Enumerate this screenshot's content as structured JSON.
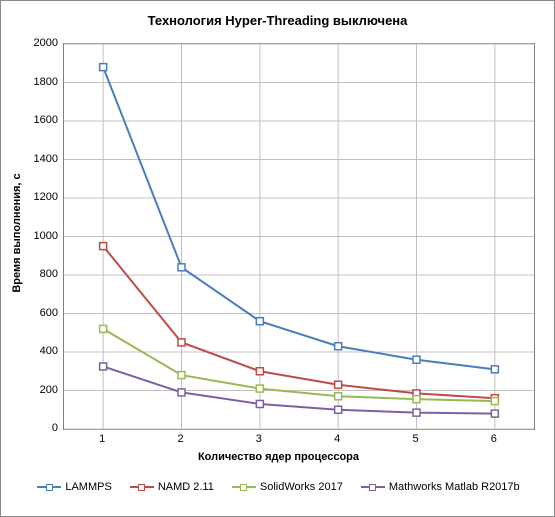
{
  "chart": {
    "title": "Технология Hyper-Threading выключена",
    "title_fontsize": 13,
    "title_weight": "bold",
    "xlabel": "Количество ядер процессора",
    "ylabel": "Время выполнения, с",
    "label_fontsize": 11,
    "label_weight": "bold",
    "background_color": "#ffffff",
    "border_color": "#808080",
    "grid_color": "#c0c0c0",
    "tick_fontsize": 11,
    "ylim": [
      0,
      2000
    ],
    "ytick_step": 200,
    "yticks": [
      0,
      200,
      400,
      600,
      800,
      1000,
      1200,
      1400,
      1600,
      1800,
      2000
    ],
    "xticks": [
      1,
      2,
      3,
      4,
      5,
      6
    ],
    "xpositions": [
      0.0833,
      0.25,
      0.4167,
      0.5833,
      0.75,
      0.9167
    ],
    "type": "line",
    "marker_size": 7,
    "line_width": 2,
    "series": [
      {
        "name": "LAMMPS",
        "color": "#4a7ebb",
        "marker": "square",
        "values": [
          1880,
          840,
          560,
          430,
          360,
          310
        ]
      },
      {
        "name": "NAMD 2.11",
        "color": "#be4b48",
        "marker": "square",
        "values": [
          950,
          450,
          300,
          230,
          185,
          160
        ]
      },
      {
        "name": "SolidWorks 2017",
        "color": "#98b954",
        "marker": "square",
        "values": [
          520,
          280,
          210,
          170,
          155,
          145
        ]
      },
      {
        "name": "Mathworks Matlab R2017b",
        "color": "#7d60a0",
        "marker": "square",
        "values": [
          325,
          190,
          130,
          100,
          85,
          80
        ]
      }
    ]
  }
}
